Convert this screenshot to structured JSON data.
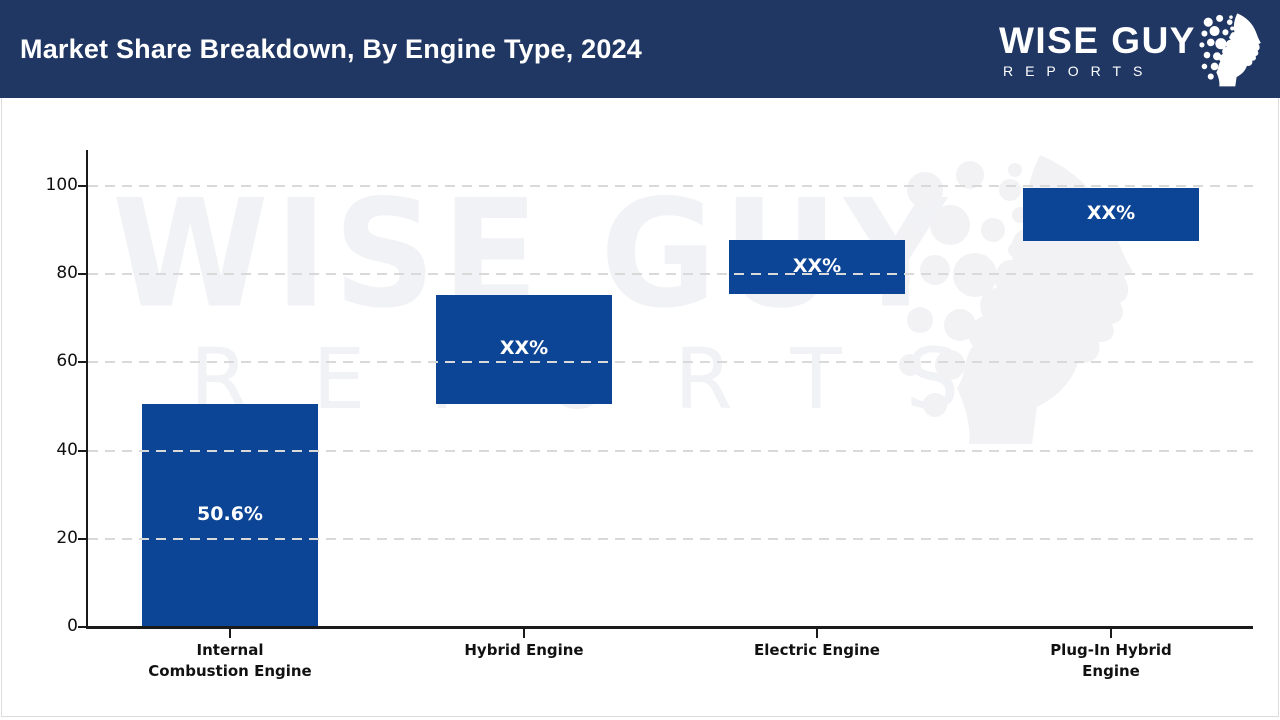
{
  "header": {
    "title": "Market Share Breakdown, By Engine Type, 2024",
    "logo": {
      "line1": "WISE GUY",
      "line2": "REPORTS"
    },
    "bg_color": "#203764"
  },
  "watermark": {
    "line1": "WISE GUY",
    "line2": "REPORTS"
  },
  "chart_data": {
    "type": "bar",
    "subtype": "waterfall",
    "title": "Market Share Breakdown, By Engine Type, 2024",
    "categories": [
      "Internal Combustion Engine",
      "Hybrid Engine",
      "Electric Engine",
      "Plug-In Hybrid Engine"
    ],
    "tick_labels": [
      [
        "Internal",
        "Combustion Engine"
      ],
      [
        "Hybrid Engine"
      ],
      [
        "Electric Engine"
      ],
      [
        "Plug-In Hybrid",
        "Engine"
      ]
    ],
    "series": [
      {
        "name": "Market Share",
        "segments": [
          {
            "category": "Internal Combustion Engine",
            "start": 0,
            "end": 50.6,
            "value_label": "50.6%",
            "value": 50.6
          },
          {
            "category": "Hybrid Engine",
            "start": 50.6,
            "end": 75.3,
            "value_label": "XX%",
            "value": 24.7
          },
          {
            "category": "Electric Engine",
            "start": 75.5,
            "end": 87.7,
            "value_label": "XX%",
            "value": 12.2
          },
          {
            "category": "Plug-In Hybrid Engine",
            "start": 87.6,
            "end": 99.6,
            "value_label": "XX%",
            "value": 12.0
          }
        ]
      }
    ],
    "xlabel": "",
    "ylabel": "",
    "ylim": [
      0,
      100
    ],
    "yticks": [
      0,
      20,
      40,
      60,
      80,
      100
    ],
    "grid": "horizontal-dashed",
    "legend": "none",
    "bar_color": "#0C4596",
    "bar_label_color": "#ffffff",
    "axis_color": "#1a1a1a",
    "gridline_color": "#d9d9d9"
  }
}
